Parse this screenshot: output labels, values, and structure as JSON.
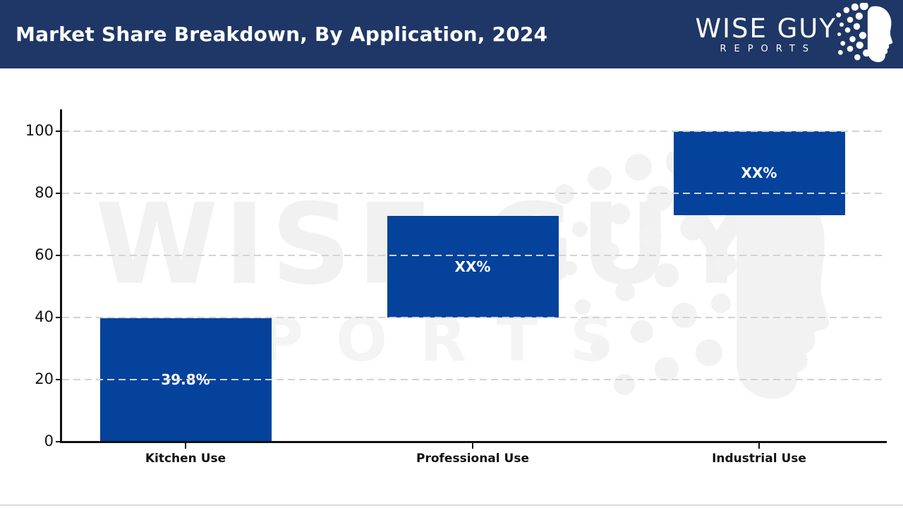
{
  "header": {
    "title": "Market Share Breakdown, By Application, 2024",
    "logo": {
      "line1": "WISE GUY",
      "line2": "REPORTS"
    }
  },
  "watermark": {
    "line1": "WISE GUY",
    "line2": "REPORTS"
  },
  "colors": {
    "header_bg": "#1f3766",
    "bar": "#04429c",
    "grid": "#d3d3d3",
    "axis": "#111111",
    "bar_label_text": "#ffffff",
    "watermark": "#f1f1f1"
  },
  "chart_data": {
    "type": "bar",
    "subtype": "waterfall",
    "title": "Market Share Breakdown, By Application, 2024",
    "categories": [
      "Kitchen Use",
      "Professional Use",
      "Industrial Use"
    ],
    "segments": [
      {
        "start": 0,
        "end": 39.8
      },
      {
        "start": 40,
        "end": 72.8
      },
      {
        "start": 73,
        "end": 100
      }
    ],
    "bar_labels": [
      "39.8%",
      "XX%",
      "XX%"
    ],
    "series": [
      {
        "name": "Market Share",
        "values": [
          39.8,
          32.8,
          27.2
        ]
      }
    ],
    "yticks": [
      0,
      20,
      40,
      60,
      80,
      100
    ],
    "ylim": [
      0,
      100
    ],
    "xlabel": "",
    "ylabel": "",
    "grid": "horizontal-dashed",
    "legend": "none"
  }
}
